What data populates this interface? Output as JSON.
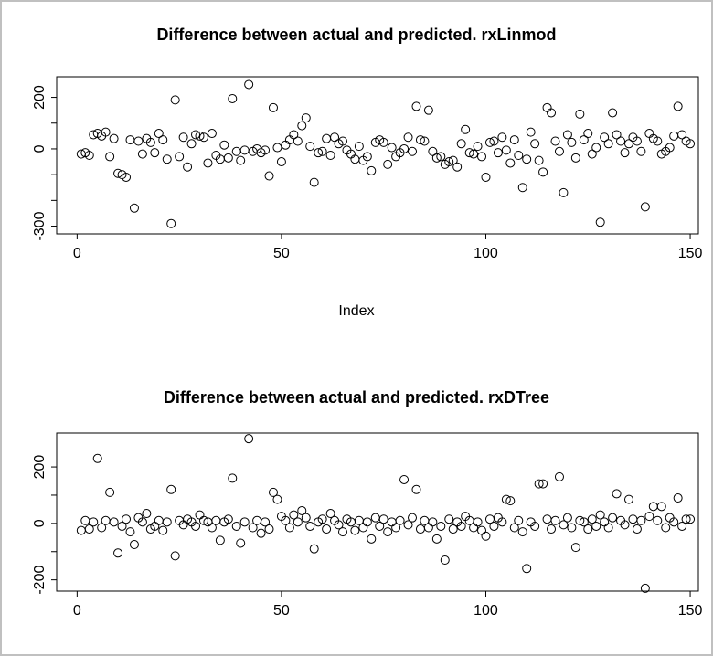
{
  "window": {
    "background": "#ffffff",
    "frame_color": "#c0c0c0"
  },
  "chart_data": [
    {
      "type": "scatter",
      "title": "Difference between actual and predicted. rxLinmod",
      "xlabel": "Index",
      "ylabel": "",
      "x_mode": "index_1_to_n",
      "xlim": [
        -5,
        152
      ],
      "ylim": [
        -330,
        280
      ],
      "grid": false,
      "legend": "none",
      "x_ticks": [
        {
          "v": 0,
          "label": "0"
        },
        {
          "v": 50,
          "label": "50"
        },
        {
          "v": 100,
          "label": "100"
        },
        {
          "v": 150,
          "label": "150"
        }
      ],
      "y_ticks": [
        {
          "v": 200,
          "label": "200"
        },
        {
          "v": 100,
          "label": ""
        },
        {
          "v": 0,
          "label": "0"
        },
        {
          "v": -100,
          "label": ""
        },
        {
          "v": -200,
          "label": ""
        },
        {
          "v": -300,
          "label": "-300"
        }
      ],
      "marker": {
        "shape": "open-circle",
        "radius": 4.5,
        "color": "#000000"
      },
      "values": [
        -20,
        -15,
        -25,
        55,
        60,
        50,
        65,
        -30,
        40,
        -95,
        -100,
        -110,
        35,
        -230,
        30,
        -20,
        40,
        25,
        -15,
        60,
        35,
        -40,
        -290,
        190,
        -30,
        45,
        -70,
        20,
        55,
        50,
        45,
        -55,
        60,
        -25,
        -40,
        15,
        -35,
        195,
        -10,
        -45,
        -5,
        250,
        -10,
        0,
        -15,
        -5,
        -105,
        160,
        5,
        -50,
        15,
        35,
        55,
        30,
        90,
        120,
        10,
        -130,
        -15,
        -10,
        40,
        -25,
        45,
        20,
        30,
        -5,
        -20,
        -40,
        10,
        -45,
        -30,
        -85,
        25,
        35,
        25,
        -60,
        5,
        -30,
        -15,
        0,
        45,
        -10,
        165,
        35,
        30,
        150,
        -10,
        -35,
        -30,
        -60,
        -50,
        -45,
        -70,
        20,
        75,
        -15,
        -20,
        10,
        -30,
        -110,
        25,
        30,
        -15,
        45,
        -5,
        -55,
        35,
        -25,
        -150,
        -40,
        65,
        20,
        -45,
        -90,
        160,
        140,
        30,
        -10,
        -170,
        55,
        25,
        -35,
        135,
        35,
        60,
        -20,
        5,
        -285,
        45,
        20,
        140,
        55,
        30,
        -15,
        20,
        45,
        30,
        -10,
        -225,
        60,
        40,
        30,
        -20,
        -10,
        5,
        50,
        165,
        55,
        30,
        20
      ]
    },
    {
      "type": "scatter",
      "title": "Difference between actual and predicted. rxDTree",
      "xlabel": "",
      "ylabel": "",
      "x_mode": "index_1_to_n",
      "xlim": [
        -5,
        152
      ],
      "ylim": [
        -240,
        320
      ],
      "grid": false,
      "legend": "none",
      "x_ticks": [
        {
          "v": 0,
          "label": "0"
        },
        {
          "v": 50,
          "label": "50"
        },
        {
          "v": 100,
          "label": "100"
        },
        {
          "v": 150,
          "label": "150"
        }
      ],
      "y_ticks": [
        {
          "v": 200,
          "label": "200"
        },
        {
          "v": 100,
          "label": ""
        },
        {
          "v": 0,
          "label": "0"
        },
        {
          "v": -100,
          "label": ""
        },
        {
          "v": -200,
          "label": "-200"
        }
      ],
      "marker": {
        "shape": "open-circle",
        "radius": 4.5,
        "color": "#000000"
      },
      "values": [
        -25,
        10,
        -20,
        5,
        230,
        -15,
        10,
        110,
        5,
        -105,
        -10,
        15,
        -30,
        -75,
        20,
        5,
        35,
        -20,
        -10,
        10,
        -25,
        5,
        120,
        -115,
        10,
        -5,
        15,
        5,
        -10,
        30,
        10,
        5,
        -15,
        10,
        -60,
        5,
        15,
        160,
        -10,
        -70,
        5,
        300,
        -15,
        10,
        -35,
        5,
        -20,
        110,
        85,
        25,
        10,
        -15,
        30,
        5,
        45,
        20,
        -10,
        -90,
        5,
        15,
        -20,
        35,
        10,
        -5,
        -30,
        15,
        5,
        -25,
        10,
        -15,
        5,
        -55,
        20,
        -10,
        15,
        -30,
        5,
        -15,
        10,
        155,
        -5,
        20,
        120,
        -20,
        10,
        -15,
        5,
        -55,
        -10,
        -130,
        15,
        -20,
        5,
        -10,
        25,
        10,
        -15,
        5,
        -25,
        -45,
        15,
        -10,
        20,
        5,
        85,
        80,
        -15,
        10,
        -30,
        -160,
        5,
        -10,
        140,
        140,
        15,
        -20,
        10,
        165,
        -5,
        20,
        -15,
        -85,
        10,
        5,
        -20,
        15,
        -10,
        30,
        5,
        -15,
        20,
        105,
        10,
        -5,
        85,
        15,
        -20,
        10,
        -230,
        25,
        60,
        10,
        60,
        -15,
        20,
        5,
        90,
        -10,
        15,
        15
      ]
    }
  ]
}
